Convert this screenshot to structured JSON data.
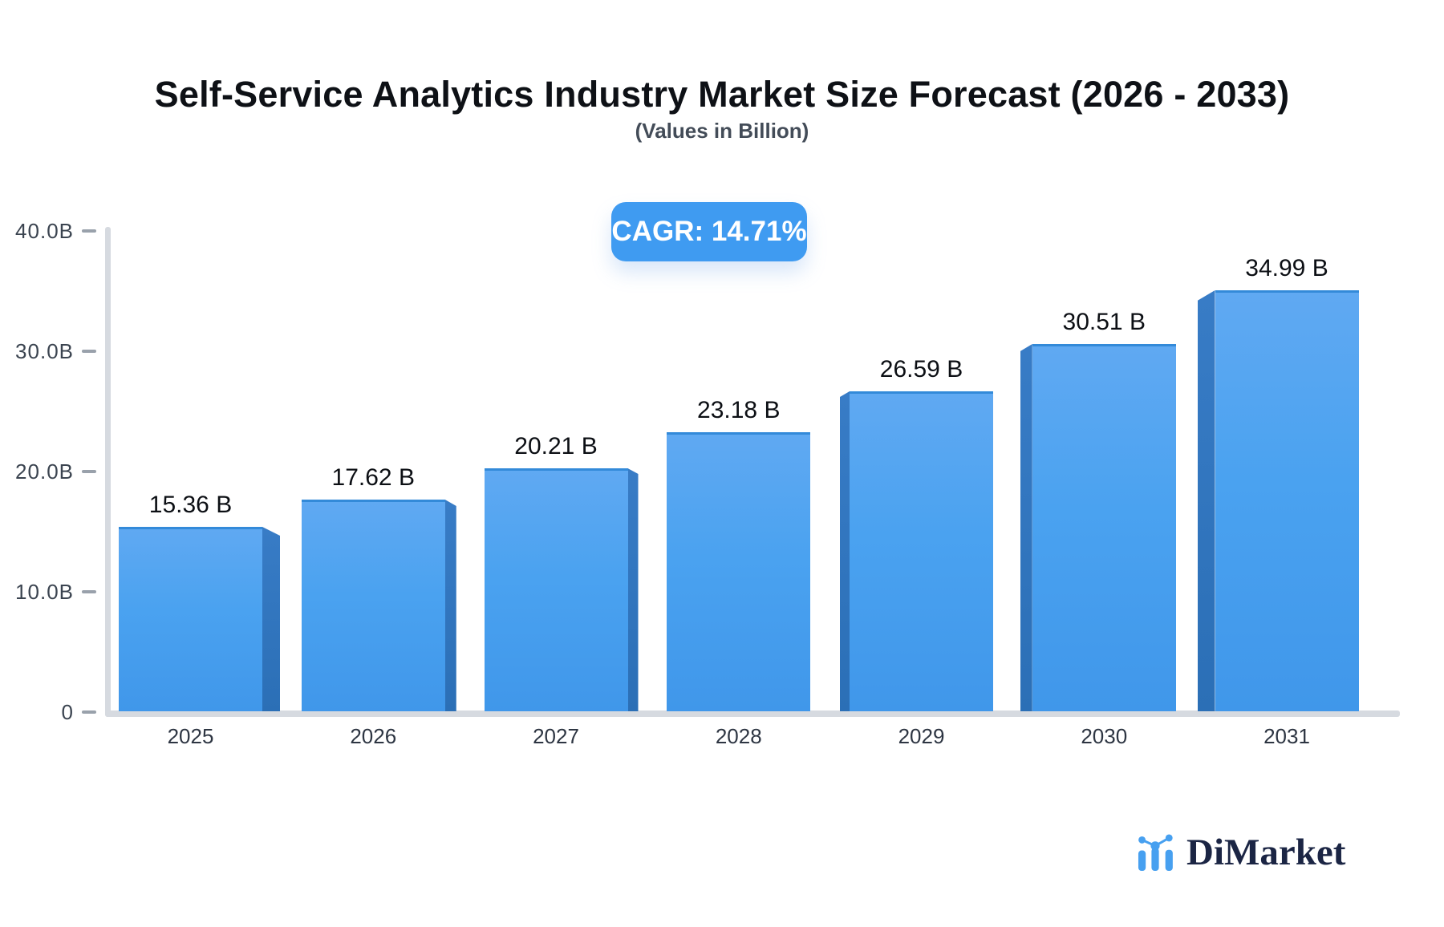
{
  "header": {
    "title": "Self-Service Analytics Industry Market Size Forecast (2026 - 2033)",
    "subtitle": "(Values in Billion)",
    "cagr_badge": "CAGR: 14.71%"
  },
  "chart_data": {
    "type": "bar",
    "title": "Self-Service Analytics Industry Market Size Forecast (2026 - 2033)",
    "subtitle": "(Values in Billion)",
    "categories": [
      "2025",
      "2026",
      "2027",
      "2028",
      "2029",
      "2030",
      "2031"
    ],
    "values": [
      15.36,
      17.62,
      20.21,
      23.18,
      26.59,
      30.51,
      34.99
    ],
    "bar_labels": [
      "15.36 B",
      "17.62 B",
      "20.21 B",
      "23.18 B",
      "26.59 B",
      "30.51 B",
      "34.99 B"
    ],
    "unit": "Billion",
    "xlabel": "",
    "ylabel": "",
    "ylim": [
      0,
      40
    ],
    "y_ticks": [
      {
        "value": 40,
        "label": "40.0B"
      },
      {
        "value": 30,
        "label": "30.0B"
      },
      {
        "value": 20,
        "label": "20.0B"
      },
      {
        "value": 10,
        "label": "10.0B"
      },
      {
        "value": 0,
        "label": "0"
      }
    ],
    "grid": false,
    "legend": "none",
    "annotations": [
      "CAGR: 14.71%"
    ],
    "colors": {
      "bar_face": "#4aa2f0",
      "bar_face_top": "#60a9f2",
      "bar_face_bottom": "#4097ea",
      "bar_side": "#2d73b9",
      "bar_top_edge": "#338ad9",
      "badge_bg": "#3f9bf1",
      "axis_gray": "#d6dae0",
      "tick_gray": "#99a1ab",
      "value_text": "#0c0f14",
      "axis_text": "#3b4450"
    }
  },
  "footer": {
    "logo_text": "DiMarket",
    "logo_icon": "mini-bar-chart-icon",
    "logo_text_color": "#1b2544",
    "logo_accent_color": "#47a0f0"
  }
}
